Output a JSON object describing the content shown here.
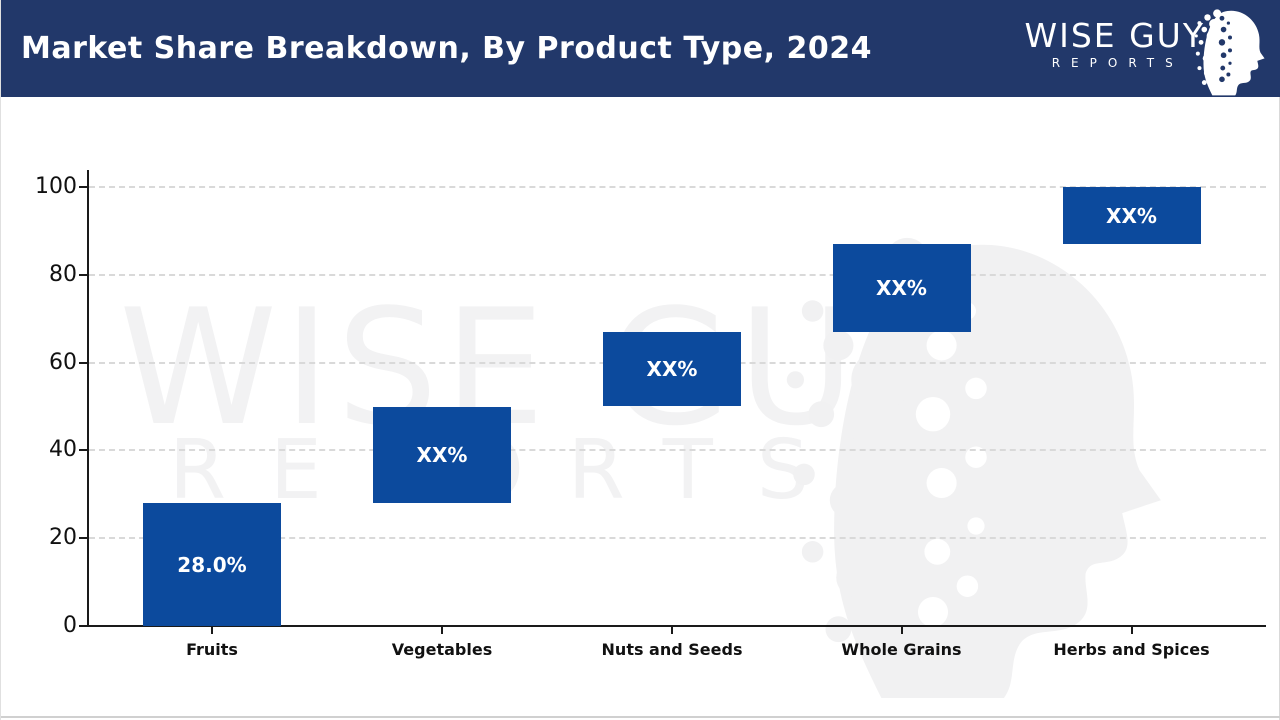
{
  "header": {
    "title": "Market Share Breakdown, By Product Type, 2024",
    "logo": {
      "line1": "WISE GUY",
      "line2": "REPORTS"
    }
  },
  "watermark": {
    "line1": "WISE GUY",
    "line2": "REPORTS"
  },
  "chart_data": {
    "type": "bar",
    "subtype": "waterfall",
    "title": "Market Share Breakdown, By Product Type, 2024",
    "categories": [
      "Fruits",
      "Vegetables",
      "Nuts and Seeds",
      "Whole Grains",
      "Herbs and Spices"
    ],
    "series": [
      {
        "name": "Market Share (%)",
        "values": [
          28,
          22,
          17,
          20,
          13
        ]
      }
    ],
    "segments": [
      {
        "category": "Fruits",
        "start": 0,
        "end": 28,
        "label": "28.0%"
      },
      {
        "category": "Vegetables",
        "start": 28,
        "end": 50,
        "label": "XX%"
      },
      {
        "category": "Nuts and Seeds",
        "start": 50,
        "end": 67,
        "label": "XX%"
      },
      {
        "category": "Whole Grains",
        "start": 67,
        "end": 87,
        "label": "XX%"
      },
      {
        "category": "Herbs and Spices",
        "start": 87,
        "end": 100,
        "label": "XX%"
      }
    ],
    "xlabel": "",
    "ylabel": "",
    "ylim": [
      0,
      100
    ],
    "yticks": [
      0,
      20,
      40,
      60,
      80,
      100
    ],
    "grid": "horizontal-dashed",
    "legend": "none",
    "bar_color": "#0c4a9d",
    "bar_label_color": "#ffffff"
  },
  "colors": {
    "header_bg": "#22386a",
    "bar": "#0c4a9d",
    "grid": "#d9d9d9",
    "axis": "#1a1a1a",
    "watermark": "#f2f2f3"
  }
}
